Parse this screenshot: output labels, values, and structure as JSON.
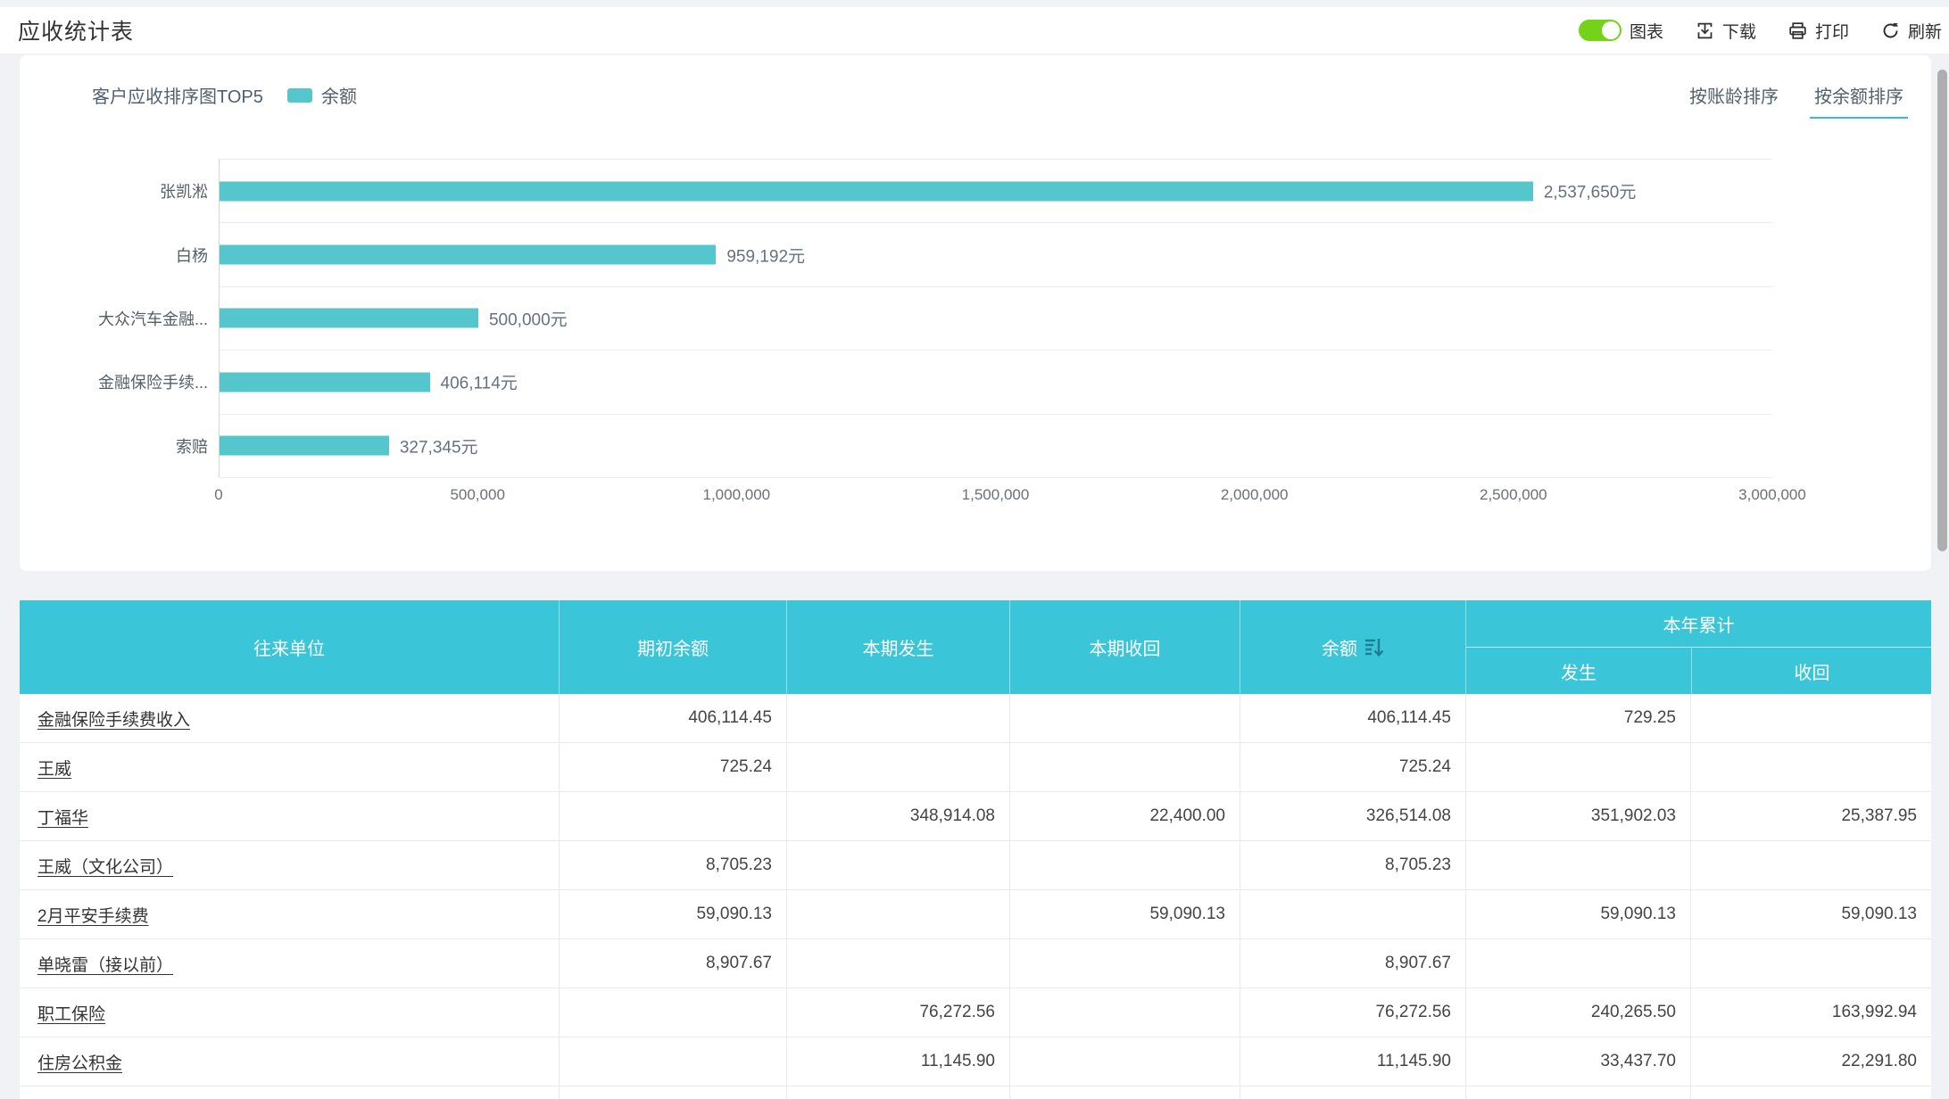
{
  "page": {
    "title": "应收统计表"
  },
  "topbar": {
    "chart_toggle_label": "图表",
    "chart_toggle_on": true,
    "download_label": "下载",
    "print_label": "打印",
    "refresh_label": "刷新"
  },
  "chart": {
    "title": "客户应收排序图TOP5",
    "legend_label": "余额",
    "sort_tabs": [
      {
        "label": "按账龄排序",
        "active": false
      },
      {
        "label": "按余额排序",
        "active": true
      }
    ]
  },
  "chart_data": {
    "type": "bar",
    "orientation": "horizontal",
    "title": "客户应收排序图TOP5",
    "series_name": "余额",
    "categories": [
      "张凯淞",
      "白杨",
      "大众汽车金融...",
      "金融保险手续...",
      "索赔"
    ],
    "values": [
      2537650,
      959192,
      500000,
      406114,
      327345
    ],
    "value_labels": [
      "2,537,650元",
      "959,192元",
      "500,000元",
      "406,114元",
      "327,345元"
    ],
    "xlim": [
      0,
      3000000
    ],
    "x_ticks": [
      "0",
      "500,000",
      "1,000,000",
      "1,500,000",
      "2,000,000",
      "2,500,000",
      "3,000,000"
    ],
    "grid": "horizontal-splits",
    "legend_position": "top-left",
    "bar_color": "#55c6cc"
  },
  "table": {
    "headers": {
      "unit": "往来单位",
      "opening_balance": "期初余额",
      "current_incurred": "本期发生",
      "current_recovered": "本期收回",
      "balance": "余额",
      "year_total": "本年累计",
      "year_incurred": "发生",
      "year_recovered": "收回"
    },
    "sorted_by": "余额",
    "rows": [
      {
        "cells": [
          "金融保险手续费收入",
          "406,114.45",
          "",
          "",
          "406,114.45",
          "729.25",
          ""
        ]
      },
      {
        "cells": [
          "王威",
          "725.24",
          "",
          "",
          "725.24",
          "",
          ""
        ]
      },
      {
        "cells": [
          "丁福华",
          "",
          "348,914.08",
          "22,400.00",
          "326,514.08",
          "351,902.03",
          "25,387.95"
        ]
      },
      {
        "cells": [
          "王威（文化公司）",
          "8,705.23",
          "",
          "",
          "8,705.23",
          "",
          ""
        ]
      },
      {
        "cells": [
          "2月平安手续费",
          "59,090.13",
          "",
          "59,090.13",
          "",
          "59,090.13",
          "59,090.13"
        ]
      },
      {
        "cells": [
          "单晓雷（接以前）",
          "8,907.67",
          "",
          "",
          "8,907.67",
          "",
          ""
        ]
      },
      {
        "cells": [
          "职工保险",
          "",
          "76,272.56",
          "",
          "76,272.56",
          "240,265.50",
          "163,992.94"
        ]
      },
      {
        "cells": [
          "住房公积金",
          "",
          "11,145.90",
          "",
          "11,145.90",
          "33,437.70",
          "22,291.80"
        ]
      }
    ]
  },
  "colors": {
    "accent_teal": "#3bc5d8",
    "bar_teal": "#55c6cc",
    "toggle_green": "#74d219",
    "tab_underline": "#35bcd9",
    "sort_icon": "#1f7d92",
    "page_background": "#f0f2f5"
  }
}
